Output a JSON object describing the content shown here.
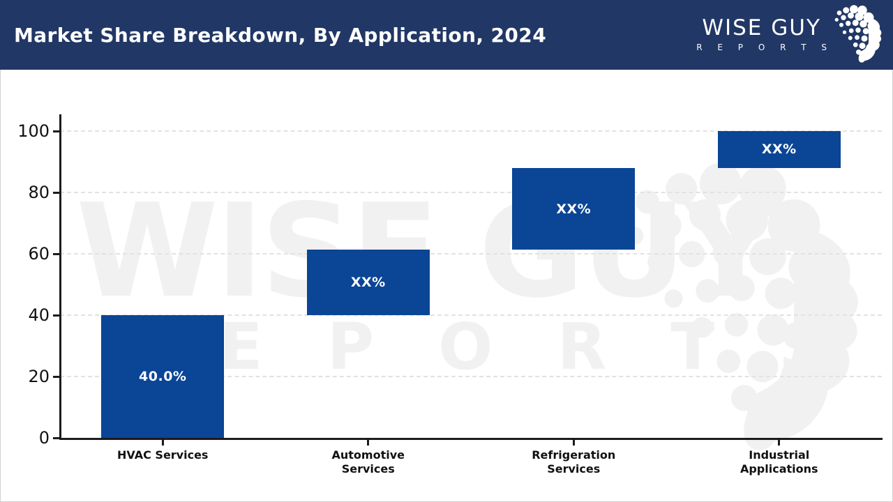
{
  "header": {
    "title": "Market Share Breakdown, By Application, 2024",
    "logo": {
      "line1": "WISE GUY",
      "line2": "R E P O R T S"
    }
  },
  "watermark": {
    "line1": "WISE GUY",
    "line2": "R E P O R T S"
  },
  "colors": {
    "header_bg": "#213765",
    "bar": "#0a4596",
    "bar_label_text": "#ffffff",
    "grid_line": "#e2e2e2",
    "axis": "#1c1c1c",
    "tick_label": "#111111",
    "watermark_gray": "#f1f1f1",
    "panel_border": "#cfcfcf"
  },
  "chart_data": {
    "type": "bar",
    "subtype": "waterfall",
    "title": "Market Share Breakdown, By Application, 2024",
    "categories": [
      "HVAC Services",
      "Automotive\nServices",
      "Refrigeration\nServices",
      "Industrial\nApplications"
    ],
    "segments": [
      {
        "category": "HVAC Services",
        "start": 0,
        "end": 40,
        "label": "40.0%"
      },
      {
        "category": "Automotive Services",
        "start": 40,
        "end": 61.3,
        "label": "XX%"
      },
      {
        "category": "Refrigeration Services",
        "start": 61.3,
        "end": 88,
        "label": "XX%"
      },
      {
        "category": "Industrial Applications",
        "start": 88,
        "end": 100,
        "label": "XX%"
      }
    ],
    "y_ticks": [
      0,
      20,
      40,
      60,
      80,
      100
    ],
    "ylim": [
      0,
      105.5
    ],
    "xlabel": "",
    "ylabel": "",
    "grid": "horizontal dashed",
    "legend_position": "none"
  }
}
